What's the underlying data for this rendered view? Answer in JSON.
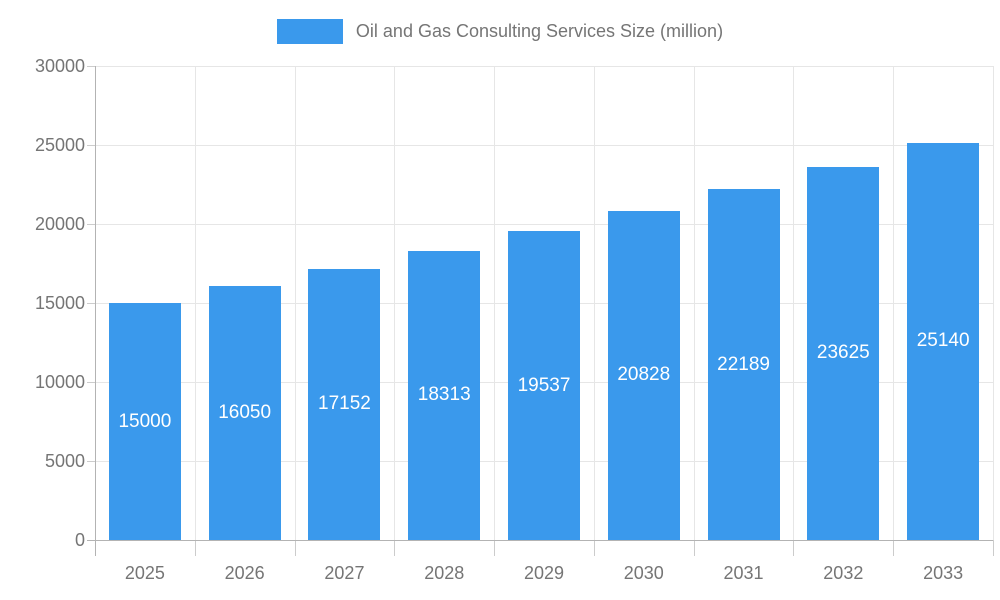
{
  "legend": {
    "label": "Oil and Gas Consulting Services Size (million)"
  },
  "colors": {
    "bar": "#3A99EC",
    "grid": "#e6e6e6",
    "tick": "#cccccc",
    "axis": "#b3b3b3",
    "text": "#757575",
    "value_label": "#ffffff",
    "background": "#ffffff"
  },
  "chart_data": {
    "type": "bar",
    "title": "",
    "xlabel": "",
    "ylabel": "",
    "series_name": "Oil and Gas Consulting Services Size (million)",
    "categories": [
      "2025",
      "2026",
      "2027",
      "2028",
      "2029",
      "2030",
      "2031",
      "2032",
      "2033"
    ],
    "values": [
      15000,
      16050,
      17152,
      18313,
      19537,
      20828,
      22189,
      23625,
      25140
    ],
    "ylim": [
      0,
      30000
    ],
    "yticks": [
      0,
      5000,
      10000,
      15000,
      20000,
      25000,
      30000
    ],
    "grid": true,
    "legend_position": "top",
    "value_labels": "inside-center"
  }
}
